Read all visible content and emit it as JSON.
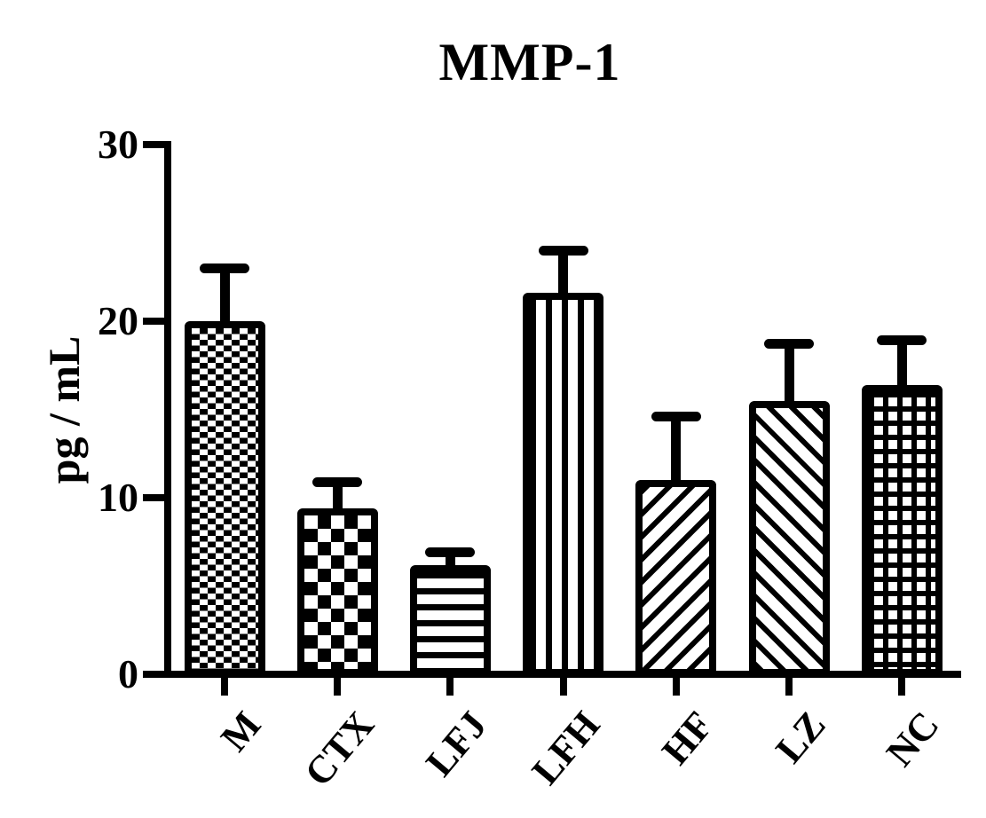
{
  "chart_data": {
    "type": "bar",
    "title": "MMP-1",
    "ylabel": "pg / mL",
    "xlabel": "",
    "categories": [
      "M",
      "CTX",
      "LFJ",
      "LFH",
      "HF",
      "LZ",
      "NC"
    ],
    "values": [
      20.0,
      9.4,
      6.2,
      21.6,
      11.0,
      15.5,
      16.4
    ],
    "errors_plus": [
      3.0,
      1.5,
      0.7,
      2.4,
      3.6,
      3.2,
      2.5
    ],
    "error_style": "upper-error-bars-with-caps",
    "ylim": [
      0,
      30
    ],
    "yticks": [
      0,
      10,
      20,
      30
    ],
    "grid": false,
    "legend": "none",
    "bar_fill_patterns": [
      "fine-checkerboard",
      "coarse-checkerboard",
      "horizontal-lines",
      "vertical-lines",
      "forward-diagonal-lines",
      "backward-diagonal-lines",
      "square-grid"
    ],
    "bar_color": "#000000",
    "background_color": "#ffffff"
  }
}
